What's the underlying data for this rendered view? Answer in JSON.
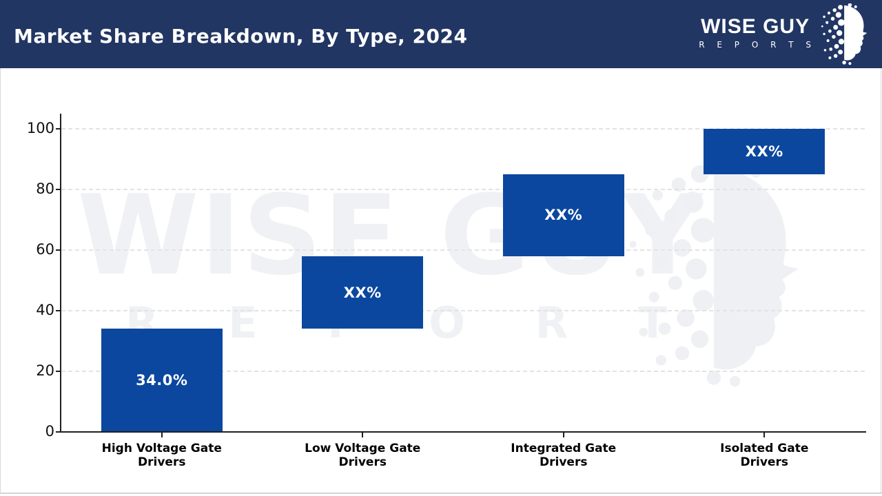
{
  "header": {
    "title": "Market Share Breakdown, By Type, 2024",
    "logo": {
      "name": "WISE GUY",
      "tagline": "R E P O R T S"
    }
  },
  "watermark": {
    "text": "WISE GUY",
    "subtext": "R E P O R T S"
  },
  "colors": {
    "header_bg": "#223663",
    "bar": "#0b479e",
    "grid": "#e3e3e3",
    "axis": "#1f1f1f",
    "watermark": "#f0f1f4",
    "value_label": "#ffffff",
    "tick_label": "#111111"
  },
  "chart_data": {
    "type": "bar",
    "subtype": "waterfall",
    "title": "Market Share Breakdown, By Type, 2024",
    "categories": [
      "High Voltage Gate Drivers",
      "Low Voltage Gate Drivers",
      "Integrated Gate Drivers",
      "Isolated Gate Drivers"
    ],
    "category_lines": [
      [
        "High Voltage Gate",
        "Drivers"
      ],
      [
        "Low Voltage Gate",
        "Drivers"
      ],
      [
        "Integrated Gate",
        "Drivers"
      ],
      [
        "Isolated Gate",
        "Drivers"
      ]
    ],
    "segments": [
      {
        "category": "High Voltage Gate Drivers",
        "start": 0,
        "end": 34,
        "value_label": "34.0%"
      },
      {
        "category": "Low Voltage Gate Drivers",
        "start": 34,
        "end": 58,
        "value_label": "XX%"
      },
      {
        "category": "Integrated Gate Drivers",
        "start": 58,
        "end": 85,
        "value_label": "XX%"
      },
      {
        "category": "Isolated Gate Drivers",
        "start": 85,
        "end": 100,
        "value_label": "XX%"
      }
    ],
    "ylim": [
      0,
      100
    ],
    "yticks": [
      0,
      20,
      40,
      60,
      80,
      100
    ],
    "grid": "horizontal-dashed",
    "legend": "none"
  }
}
